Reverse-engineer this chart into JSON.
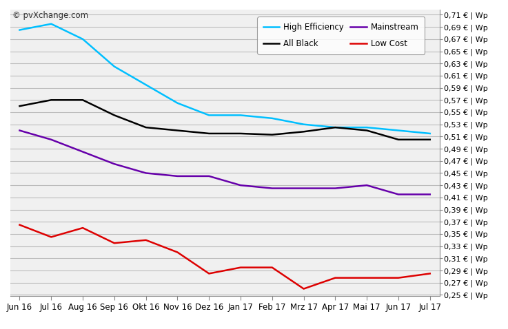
{
  "x_labels": [
    "Jun 16",
    "Jul 16",
    "Aug 16",
    "Sep 16",
    "Okt 16",
    "Nov 16",
    "Dez 16",
    "Jan 17",
    "Feb 17",
    "Mrz 17",
    "Apr 17",
    "Mai 17",
    "Jun 17",
    "Jul 17"
  ],
  "high_efficiency": [
    0.685,
    0.695,
    0.67,
    0.625,
    0.595,
    0.565,
    0.545,
    0.545,
    0.54,
    0.53,
    0.525,
    0.525,
    0.52,
    0.515
  ],
  "all_black": [
    0.56,
    0.57,
    0.57,
    0.545,
    0.525,
    0.52,
    0.515,
    0.515,
    0.513,
    0.518,
    0.525,
    0.52,
    0.505,
    0.505
  ],
  "mainstream": [
    0.52,
    0.505,
    0.485,
    0.465,
    0.45,
    0.445,
    0.445,
    0.43,
    0.425,
    0.425,
    0.425,
    0.43,
    0.415,
    0.415
  ],
  "low_cost": [
    0.365,
    0.345,
    0.36,
    0.335,
    0.34,
    0.32,
    0.285,
    0.295,
    0.295,
    0.26,
    0.278,
    0.278,
    0.278,
    0.285
  ],
  "color_high": "#00BFFF",
  "color_black": "#000000",
  "color_main": "#6600AA",
  "color_low": "#DD0000",
  "background": "#FFFFFF",
  "plot_bg": "#F0F0F0",
  "grid_color": "#BBBBBB",
  "ymin": 0.25,
  "ymax": 0.71,
  "ytick_step": 0.02,
  "watermark": "© pvXchange.com",
  "legend_labels": [
    "High Efficiency",
    "All Black",
    "Mainstream",
    "Low Cost"
  ]
}
